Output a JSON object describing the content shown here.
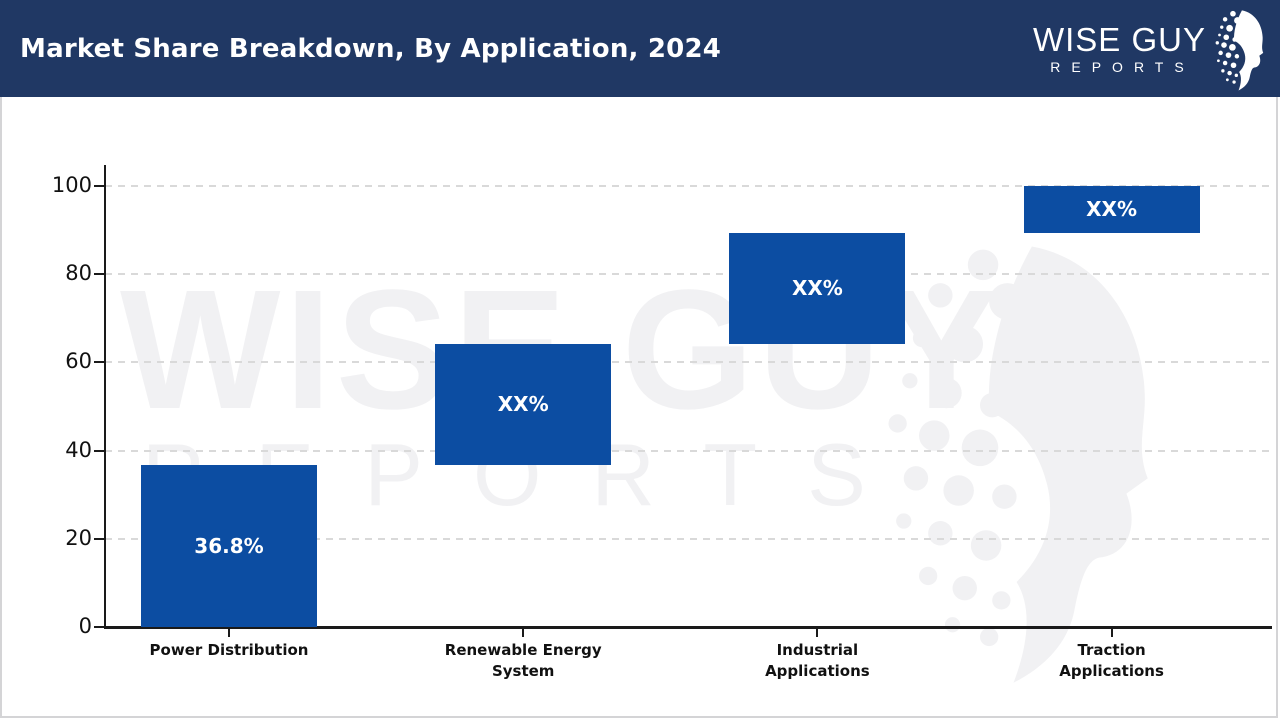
{
  "header": {
    "title": "Market Share Breakdown, By Application, 2024",
    "brand": {
      "line1": "WISE GUY",
      "line2": "REPORTS"
    }
  },
  "watermark": {
    "line1": "WISE GUY",
    "line2": "REPORTS"
  },
  "chart_data": {
    "type": "bar",
    "subtype": "floating-waterfall-segments",
    "title": "Market Share Breakdown, By Application, 2024",
    "categories": [
      "Power Distribution",
      "Renewable Energy System",
      "Industrial Applications",
      "Traction Applications"
    ],
    "x_tick_labels": [
      [
        "Power Distribution"
      ],
      [
        "Renewable Energy",
        "System"
      ],
      [
        "Industrial",
        "Applications"
      ],
      [
        "Traction",
        "Applications"
      ]
    ],
    "segments": [
      {
        "category": "Power Distribution",
        "start": 0,
        "end": 36.8,
        "label": "36.8%"
      },
      {
        "category": "Renewable Energy System",
        "start": 36.8,
        "end": 64.2,
        "label": "XX%"
      },
      {
        "category": "Industrial Applications",
        "start": 64.2,
        "end": 89.4,
        "label": "XX%"
      },
      {
        "category": "Traction Applications",
        "start": 89.4,
        "end": 100,
        "label": "XX%"
      }
    ],
    "ylim": [
      0,
      100
    ],
    "yticks": [
      0,
      20,
      40,
      60,
      80,
      100
    ],
    "xlabel": "",
    "ylabel": "",
    "grid": "dashed-horizontal",
    "legend": "none"
  },
  "colors": {
    "header_bg": "#203864",
    "bar": "#0c4da2",
    "bar_label": "#ffffff",
    "grid": "#d9d9d9",
    "axis": "#1a1a1a",
    "watermark": "#f1f1f3",
    "page_border": "#d4d4d6"
  }
}
